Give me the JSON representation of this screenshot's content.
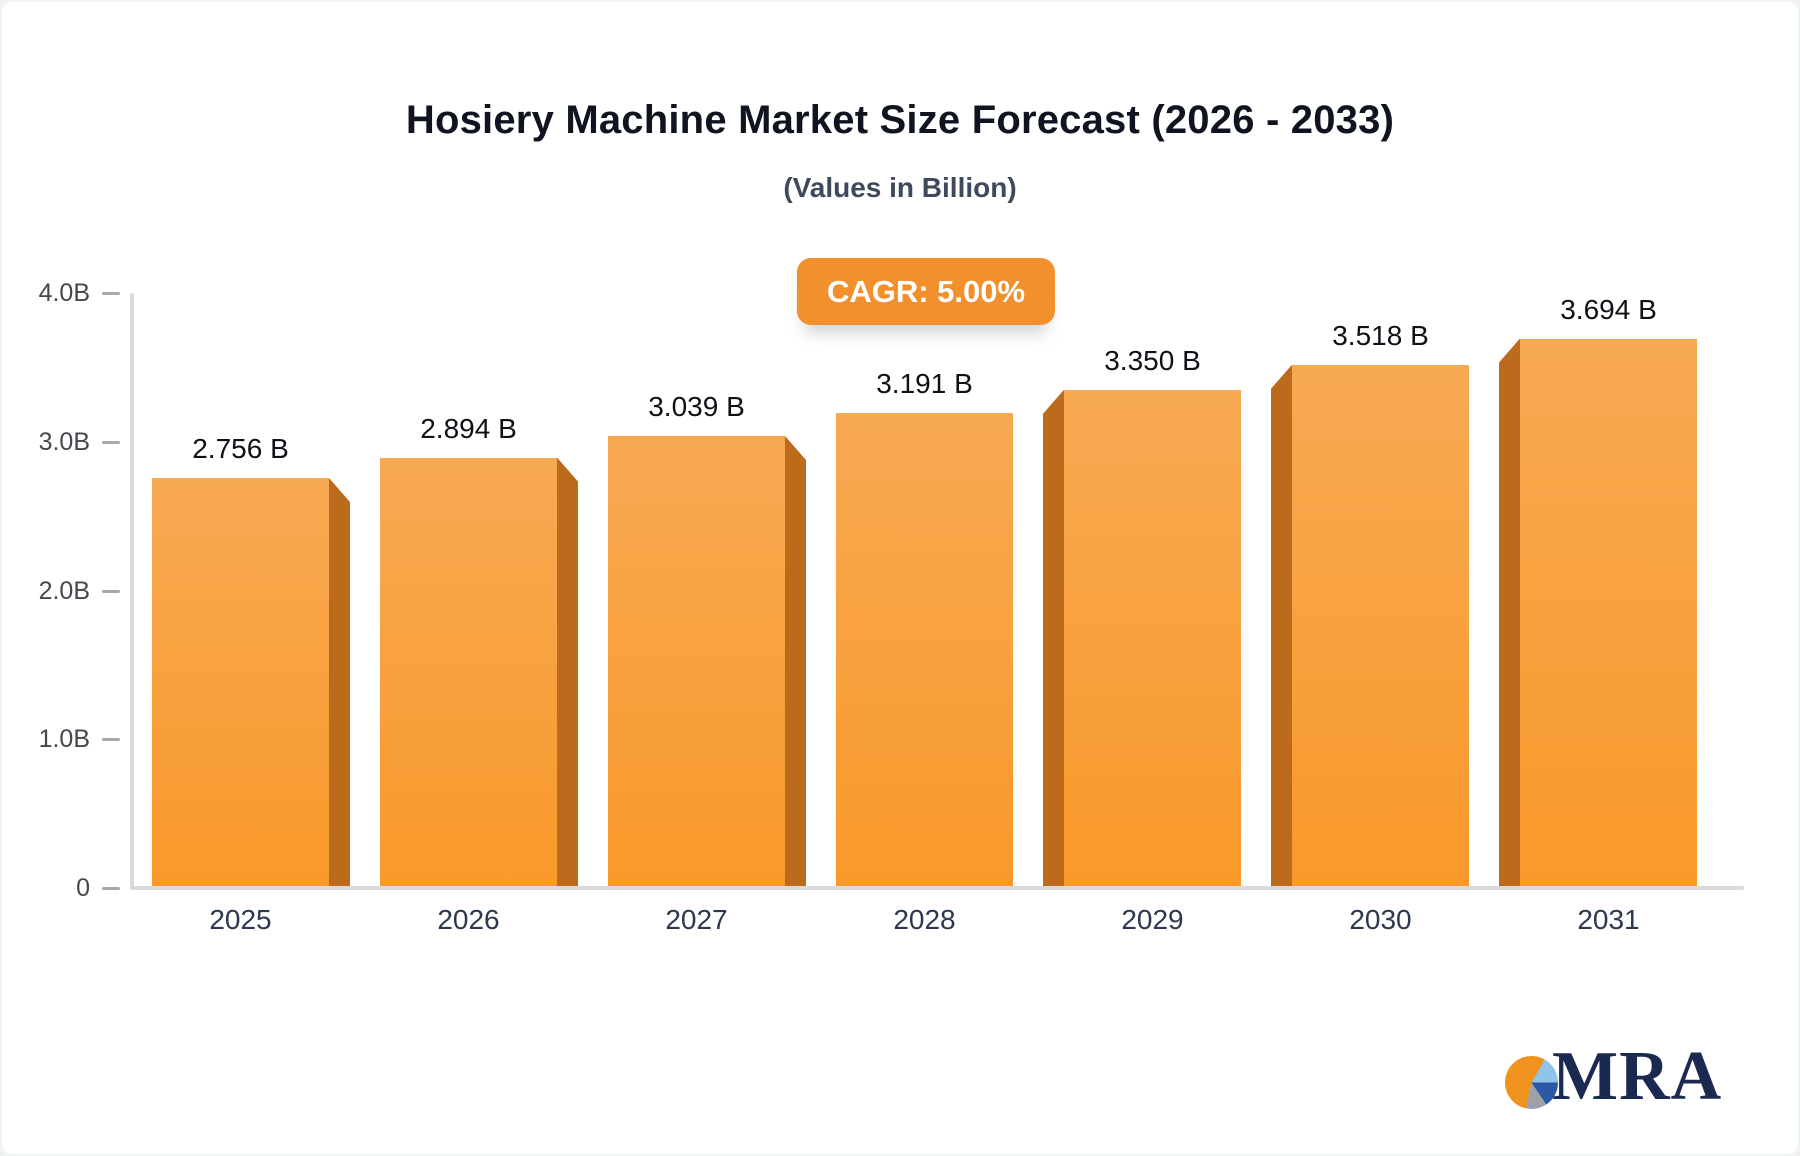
{
  "header": {
    "title": "Hosiery Machine Market Size Forecast (2026 - 2033)",
    "subtitle": "(Values in Billion)"
  },
  "badge": {
    "label": "CAGR: 5.00%"
  },
  "logo": {
    "text": "MRA",
    "icon": "pie-chart-icon"
  },
  "colors": {
    "badge_bg": "#f1902c",
    "bar_face_top": "#f7a953",
    "bar_face_bottom": "#f9992a",
    "bar_side": "#bc6a1b",
    "axis_line": "#d9dade",
    "tick_dash": "#a6a8ae",
    "title_text": "#0f1420",
    "subtitle_text": "#3e4a5c",
    "logo_navy": "#1b2950"
  },
  "chart_data": {
    "type": "bar",
    "title": "Hosiery Machine Market Size Forecast (2026 - 2033)",
    "subtitle": "(Values in Billion)",
    "annotation": "CAGR: 5.00%",
    "categories": [
      "2025",
      "2026",
      "2027",
      "2028",
      "2029",
      "2030",
      "2031"
    ],
    "values": [
      2.756,
      2.894,
      3.039,
      3.191,
      3.35,
      3.518,
      3.694
    ],
    "value_labels": [
      "2.756 B",
      "2.894 B",
      "3.039 B",
      "3.191 B",
      "3.350 B",
      "3.518 B",
      "3.694 B"
    ],
    "y_ticks": [
      {
        "label": "4.0B",
        "value": 4.0
      },
      {
        "label": "3.0B",
        "value": 3.0
      },
      {
        "label": "2.0B",
        "value": 2.0
      },
      {
        "label": "1.0B",
        "value": 1.0
      },
      {
        "label": "0",
        "value": 0.0
      }
    ],
    "ylim": [
      0,
      4.0
    ],
    "grid": false,
    "legend": false,
    "bar_style": "3d-extruded-orange"
  }
}
